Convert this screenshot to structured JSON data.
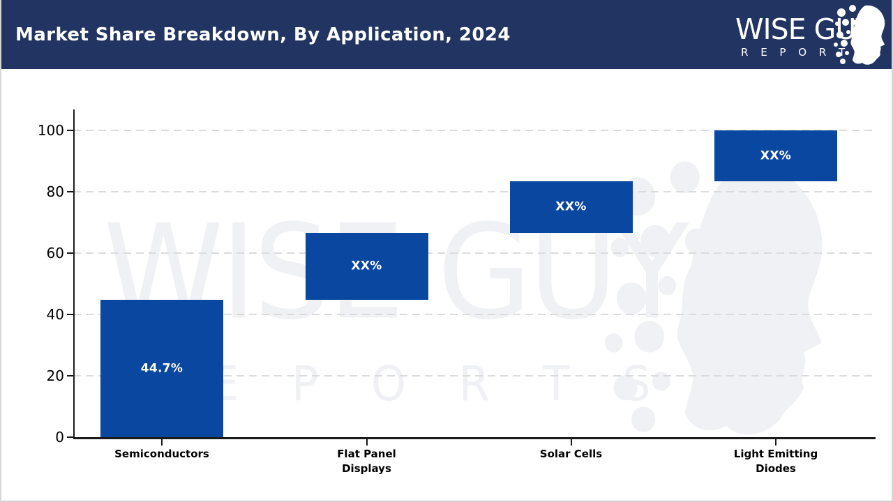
{
  "header": {
    "title": "Market Share Breakdown, By Application, 2024",
    "logo": {
      "wordmark": "WISE GUY",
      "subtext": "R E P O R T S"
    }
  },
  "watermark": {
    "wordmark": "WISE GUY",
    "subtext": "R E P O R T S"
  },
  "colors": {
    "header_bg": "#213462",
    "bar": "#0a47a0",
    "grid": "#dbdbdb",
    "axis": "#1a1a1a",
    "watermark": "#f0f1f4",
    "bar_label": "#ffffff"
  },
  "chart_data": {
    "type": "bar",
    "variant": "waterfall",
    "title": "Market Share Breakdown, By Application, 2024",
    "categories": [
      "Semiconductors",
      "Flat Panel Displays",
      "Solar Cells",
      "Light Emitting Diodes"
    ],
    "category_label_lines": [
      [
        "Semiconductors"
      ],
      [
        "Flat Panel",
        "Displays"
      ],
      [
        "Solar Cells"
      ],
      [
        "Light Emitting",
        "Diodes"
      ]
    ],
    "segments": [
      {
        "category": "Semiconductors",
        "start": 0,
        "end": 44.7,
        "label": "44.7%"
      },
      {
        "category": "Flat Panel Displays",
        "start": 44.7,
        "end": 66.5,
        "label": "XX%"
      },
      {
        "category": "Solar Cells",
        "start": 66.5,
        "end": 83.4,
        "label": "XX%"
      },
      {
        "category": "Light Emitting Diodes",
        "start": 83.4,
        "end": 100,
        "label": "XX%"
      }
    ],
    "xlabel": "",
    "ylabel": "",
    "yticks": [
      0,
      20,
      40,
      60,
      80,
      100
    ],
    "ylim": [
      0,
      106
    ],
    "grid": "horizontal-dashed",
    "legend": "none",
    "bar_color": "#0a47a0",
    "value_label_color": "#ffffff"
  }
}
